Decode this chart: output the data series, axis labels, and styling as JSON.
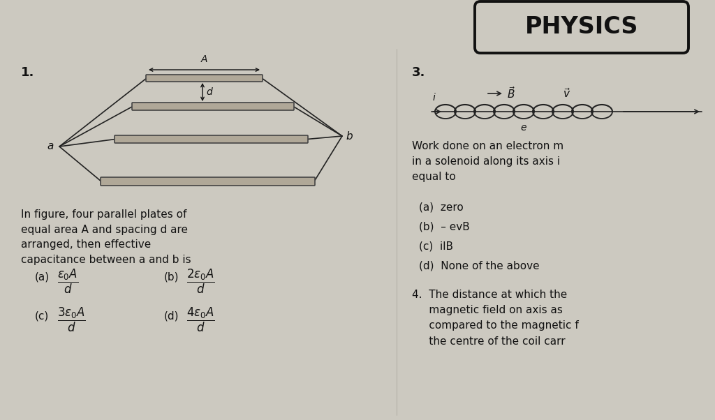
{
  "bg_color": "#ccc9c0",
  "text_color": "#111111",
  "physics_label": "PHYSICS",
  "q1_num": "1.",
  "q3_num": "3.",
  "q4_num": "4.",
  "q1_body": "In figure, four parallel plates of\nequal area A and spacing d are\narranged, then effective\ncapacitance between a and b is",
  "q3_body": "Work done on an electron m\nin a solenoid along its axis i\nequal to",
  "q3_opts": [
    "(a)  zero",
    "(b)  – evB",
    "(c)  ilB",
    "(d)  None of the above"
  ],
  "q4_body": "4.  The distance at which the\n     magnetic field on axis as\n     compared to the magnetic f\n     the centre of the coil carr",
  "plate_color": "#b0a898",
  "plate_edge": "#444444",
  "line_color": "#222222"
}
